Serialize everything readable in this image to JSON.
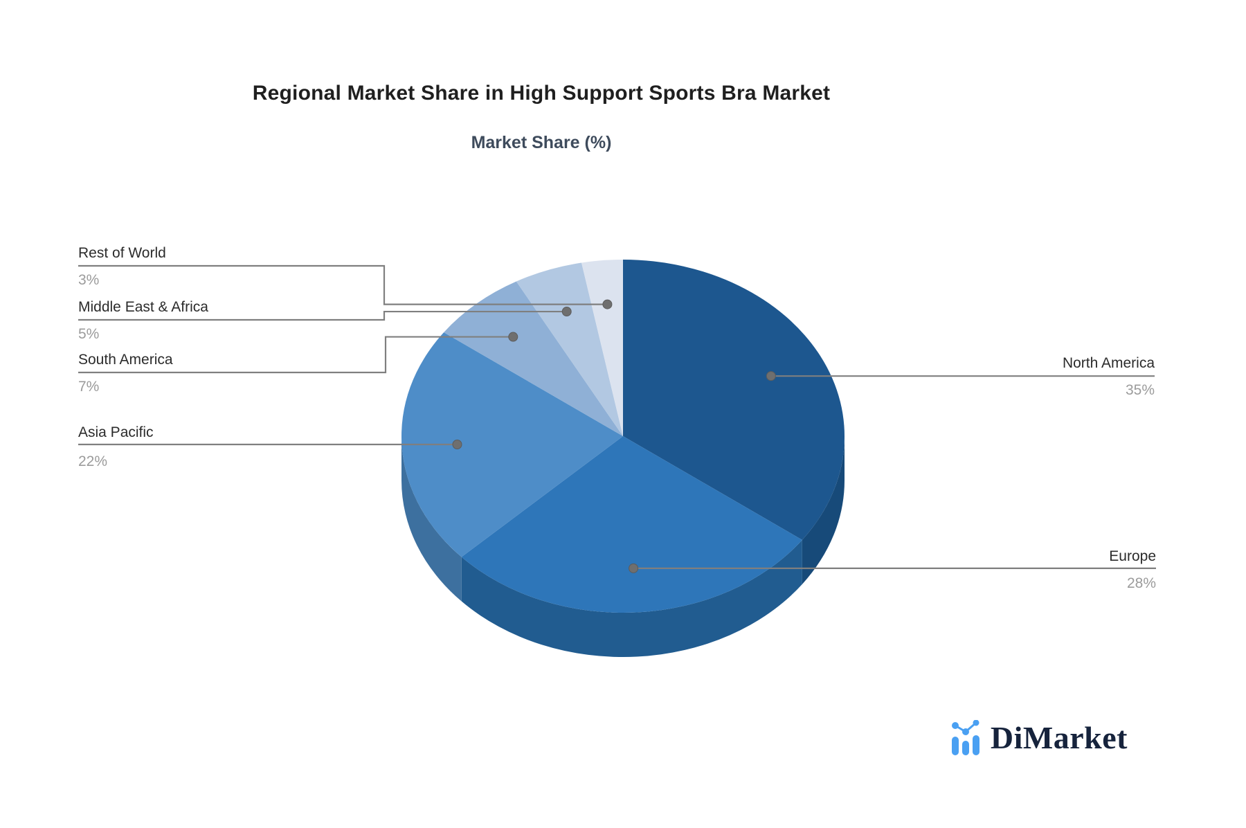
{
  "header": {
    "title": "Regional Market Share in High Support Sports Bra Market",
    "subtitle": "Market Share (%)"
  },
  "logo": {
    "text": "DiMarket",
    "icon": "bar-line-chart-icon",
    "icon_color": "#4aa0f2",
    "text_color": "#16233c"
  },
  "chart_data": {
    "type": "pie",
    "style": "3d",
    "title": "Regional Market Share in High Support Sports Bra Market",
    "subtitle": "Market Share (%)",
    "unit": "percent",
    "direction": "clockwise",
    "start_angle": "top",
    "legend_position": "none",
    "label_style": "callout-lines-with-dots",
    "slices": [
      {
        "label": "North America",
        "value": 35,
        "pct_label": "35%",
        "color": "#1d578f",
        "side_color": "#174a79"
      },
      {
        "label": "Europe",
        "value": 28,
        "pct_label": "28%",
        "color": "#2e76b9",
        "side_color": "#215c90"
      },
      {
        "label": "Asia Pacific",
        "value": 22,
        "pct_label": "22%",
        "color": "#4e8dc8",
        "side_color": "#3d709f"
      },
      {
        "label": "South America",
        "value": 7,
        "pct_label": "7%",
        "color": "#8fb0d6",
        "side_color": "#7494b8"
      },
      {
        "label": "Middle East & Africa",
        "value": 5,
        "pct_label": "5%",
        "color": "#b2c8e2",
        "side_color": "#93a9c4"
      },
      {
        "label": "Rest of World",
        "value": 3,
        "pct_label": "3%",
        "color": "#dce3ef",
        "side_color": "#b9c3d3"
      }
    ],
    "callout": {
      "line_color": "#7f7f7f",
      "dot_color": "#6f6f6f",
      "label_color": "#2b2b2b",
      "value_color": "#9b9b9b"
    }
  }
}
